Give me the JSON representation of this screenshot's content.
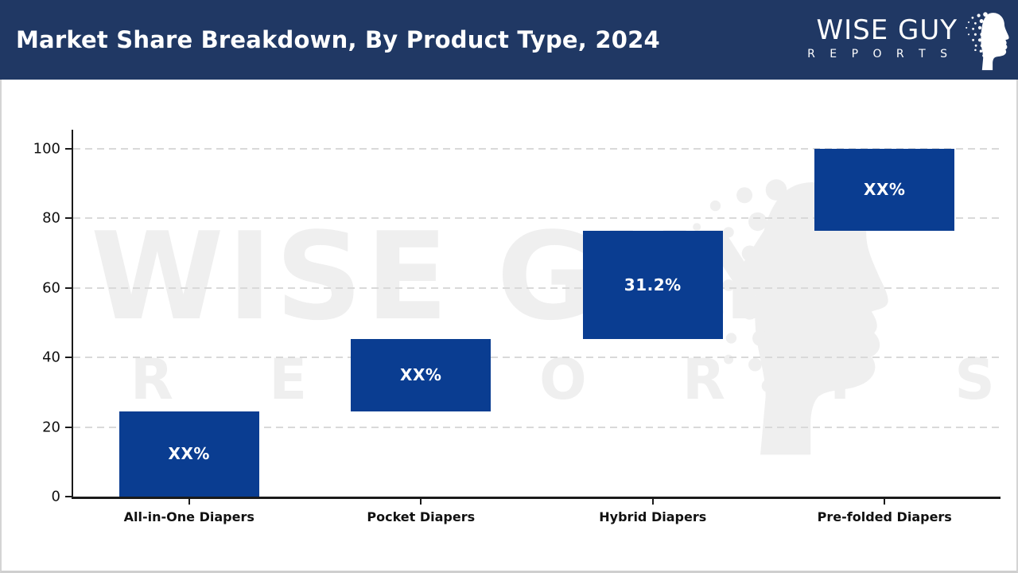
{
  "header": {
    "title": "Market Share Breakdown, By Product Type, 2024",
    "logo_line1": "WISE GUY",
    "logo_line2": "R E P O R T S"
  },
  "watermark": {
    "line1": "WISE GUY",
    "line2": "R E P O R T S"
  },
  "chart_data": {
    "type": "bar",
    "subtype": "floating-waterfall",
    "title": "Market Share Breakdown, By Product Type, 2024",
    "xlabel": "",
    "ylabel": "",
    "categories": [
      "All-in-One Diapers",
      "Pocket Diapers",
      "Hybrid Diapers",
      "Pre-folded Diapers"
    ],
    "segments": [
      {
        "category": "All-in-One Diapers",
        "start": 0,
        "end": 24.5,
        "label": "XX%"
      },
      {
        "category": "Pocket Diapers",
        "start": 24.5,
        "end": 45.3,
        "label": "XX%"
      },
      {
        "category": "Hybrid Diapers",
        "start": 45.3,
        "end": 76.5,
        "label": "31.2%"
      },
      {
        "category": "Pre-folded Diapers",
        "start": 76.5,
        "end": 100,
        "label": "XX%"
      }
    ],
    "yticks": [
      0,
      20,
      40,
      60,
      80,
      100
    ],
    "ylim": [
      0,
      105.5
    ],
    "grid": "horizontal-dashed",
    "legend": "none",
    "colors": {
      "bar": "#0a3d91",
      "bar_label": "#ffffff",
      "grid": "#d9d9d9",
      "axis": "#1a1a1a",
      "header_bg": "#203864",
      "watermark": "#efefef"
    }
  }
}
